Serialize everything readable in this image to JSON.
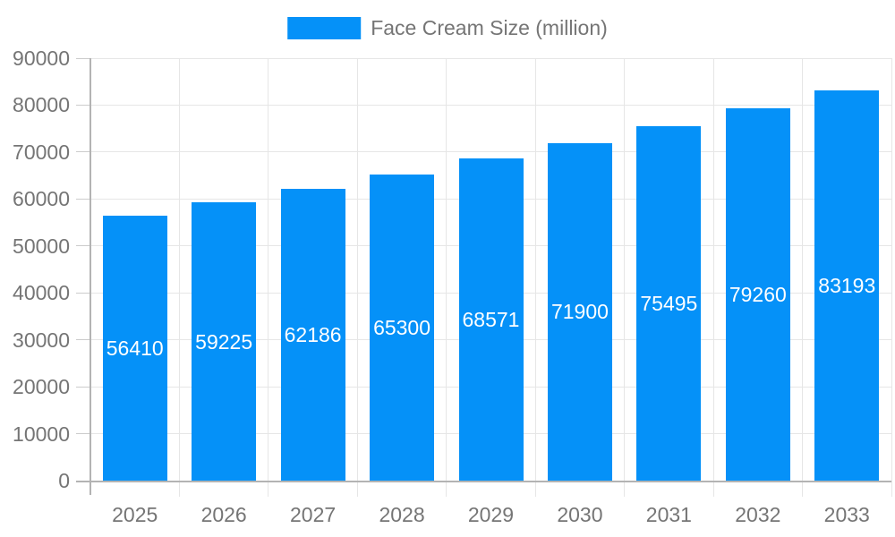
{
  "chart_data": {
    "type": "bar",
    "legend": "Face Cream Size (million)",
    "legend_position": "top-center",
    "categories": [
      "2025",
      "2026",
      "2027",
      "2028",
      "2029",
      "2030",
      "2031",
      "2032",
      "2033"
    ],
    "series": [
      {
        "name": "Face Cream Size (million)",
        "values": [
          56410,
          59225,
          62186,
          65300,
          68571,
          71900,
          75495,
          79260,
          83193
        ]
      }
    ],
    "xlabel": "",
    "ylabel": "",
    "ylim": [
      0,
      90000
    ],
    "ytick_step": 10000,
    "ytick_labels": [
      "0",
      "10000",
      "20000",
      "30000",
      "40000",
      "50000",
      "60000",
      "70000",
      "80000",
      "90000"
    ],
    "grid": true,
    "value_labels": "inside-center",
    "colors": {
      "bar": "#0591f8",
      "grid_line": "#e6e6e6",
      "tick_line": "#cccccc",
      "axis_line": "#b3b3b3",
      "axis_text": "#757575",
      "value_label_text": "#ffffff",
      "background": "#ffffff"
    }
  }
}
